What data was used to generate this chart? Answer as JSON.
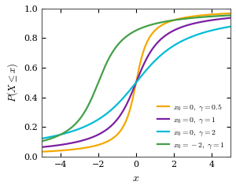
{
  "title": "",
  "xlabel": "$x$",
  "ylabel": "$P(X \\leq x)$",
  "xlim": [
    -5,
    5
  ],
  "ylim": [
    0.0,
    1.0
  ],
  "xticks": [
    -4,
    -2,
    0,
    2,
    4
  ],
  "yticks": [
    0.0,
    0.2,
    0.4,
    0.6,
    0.8,
    1.0
  ],
  "curves": [
    {
      "x0": 0,
      "gamma": 0.5,
      "color": "#f5a800",
      "label": "$x_0 = 0,\\ \\gamma = 0.5$"
    },
    {
      "x0": 0,
      "gamma": 1,
      "color": "#7b1fa2",
      "label": "$x_0 = 0,\\ \\gamma = 1$"
    },
    {
      "x0": 0,
      "gamma": 2,
      "color": "#00bcd4",
      "label": "$x_0 = 0,\\ \\gamma = 2$"
    },
    {
      "x0": -2,
      "gamma": 1,
      "color": "#43a047",
      "label": "$x_0 = -2,\\ \\gamma = 1$"
    }
  ],
  "linewidth": 1.6,
  "figsize": [
    3.0,
    2.4
  ],
  "dpi": 100,
  "background_color": "#ffffff",
  "axes_color": "#ffffff"
}
